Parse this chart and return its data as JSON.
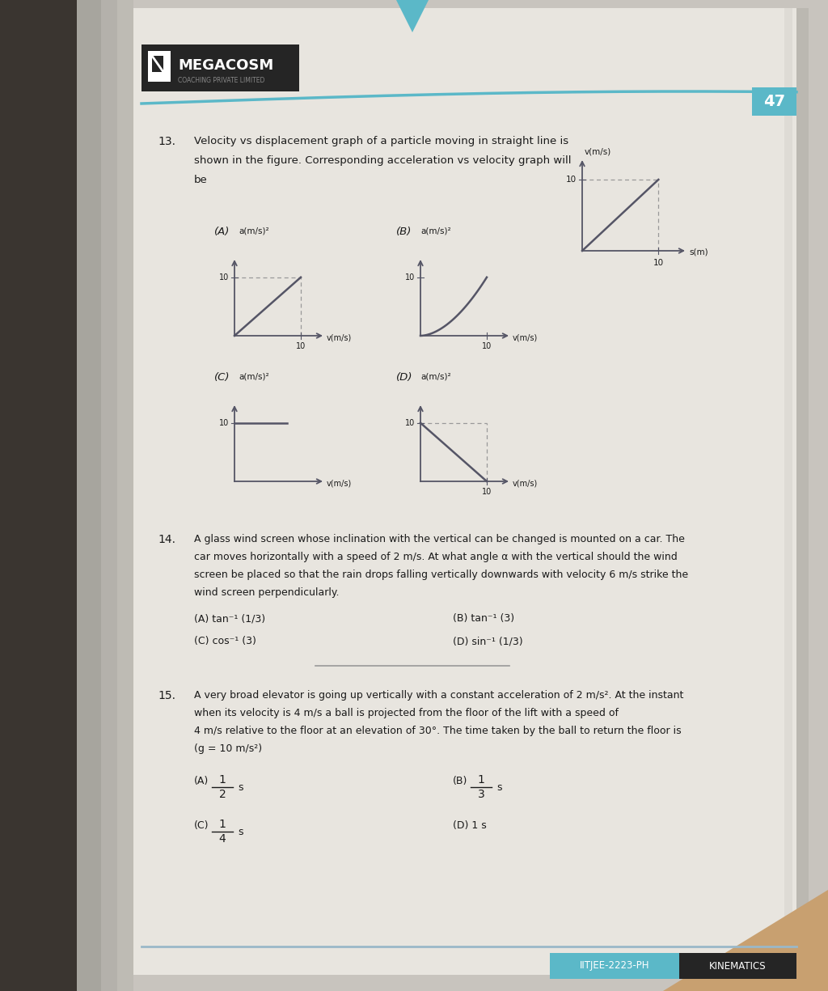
{
  "page_bg": "#c8c4be",
  "paper_color": "#e8e5df",
  "paper_shadow_left": "#b0ada8",
  "teal_color": "#5bb8c8",
  "dark_header_color": "#2a2a2a",
  "text_color": "#1a1a1a",
  "graph_line_color": "#555566",
  "dashed_color": "#999999",
  "q13_text_lines": [
    "Velocity vs displacement graph of a particle moving in straight line is",
    "shown in the figure. Corresponding acceleration vs velocity graph will",
    "be"
  ],
  "q14_text_lines": [
    "A glass wind screen whose inclination with the vertical can be changed is mounted on a car. The",
    "car moves horizontally with a speed of 2 m/s. At what angle α with the vertical should the wind",
    "screen be placed so that the rain drops falling vertically downwards with velocity 6 m/s strike the",
    "wind screen perpendicularly."
  ],
  "q15_text_lines": [
    "A very broad elevator is going up vertically with a constant acceleration of 2 m/s². At the instant",
    "when its velocity is 4 m/s a ball is projected from the floor of the lift with a speed of",
    "4 m/s relative to the floor at an elevation of 30°. The time taken by the ball to return the floor is",
    "(g = 10 m/s²)"
  ]
}
